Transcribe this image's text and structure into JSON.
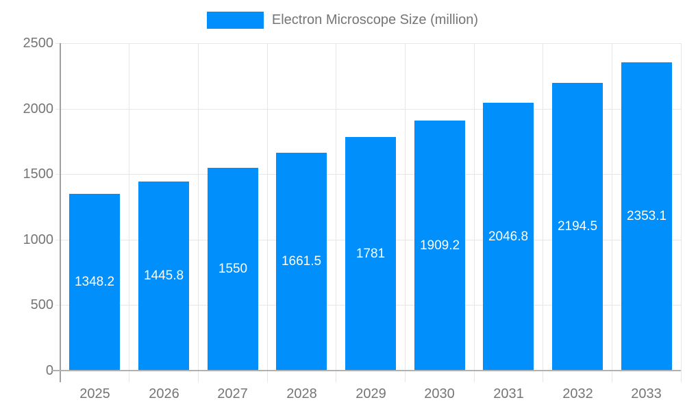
{
  "chart_data": {
    "type": "bar",
    "title": "Electron Microscope Size (million)",
    "series_label": "Electron Microscope Size (million)",
    "categories": [
      "2025",
      "2026",
      "2027",
      "2028",
      "2029",
      "2030",
      "2031",
      "2032",
      "2033"
    ],
    "values": [
      1348.2,
      1445.8,
      1550,
      1661.5,
      1781,
      1909.2,
      2046.8,
      2194.5,
      2353.1
    ],
    "value_labels": [
      "1348.2",
      "1445.8",
      "1550",
      "1661.5",
      "1781",
      "1909.2",
      "2046.8",
      "2194.5",
      "2353.1"
    ],
    "xlabel": "",
    "ylabel": "",
    "ylim": [
      0,
      2500
    ],
    "y_ticks": [
      0,
      500,
      1000,
      1500,
      2000,
      2500
    ],
    "y_tick_labels": [
      "0",
      "500",
      "1000",
      "1500",
      "2000",
      "2500"
    ],
    "grid": true,
    "legend_position": "top",
    "colors": {
      "bar": "#008FFB",
      "axis_text": "#757575",
      "bar_label_text": "#ffffff",
      "gridline": "#e6e6e6",
      "axis_line": "#9e9e9e",
      "baseline": "#b0b0b0",
      "background": "#ffffff"
    }
  }
}
